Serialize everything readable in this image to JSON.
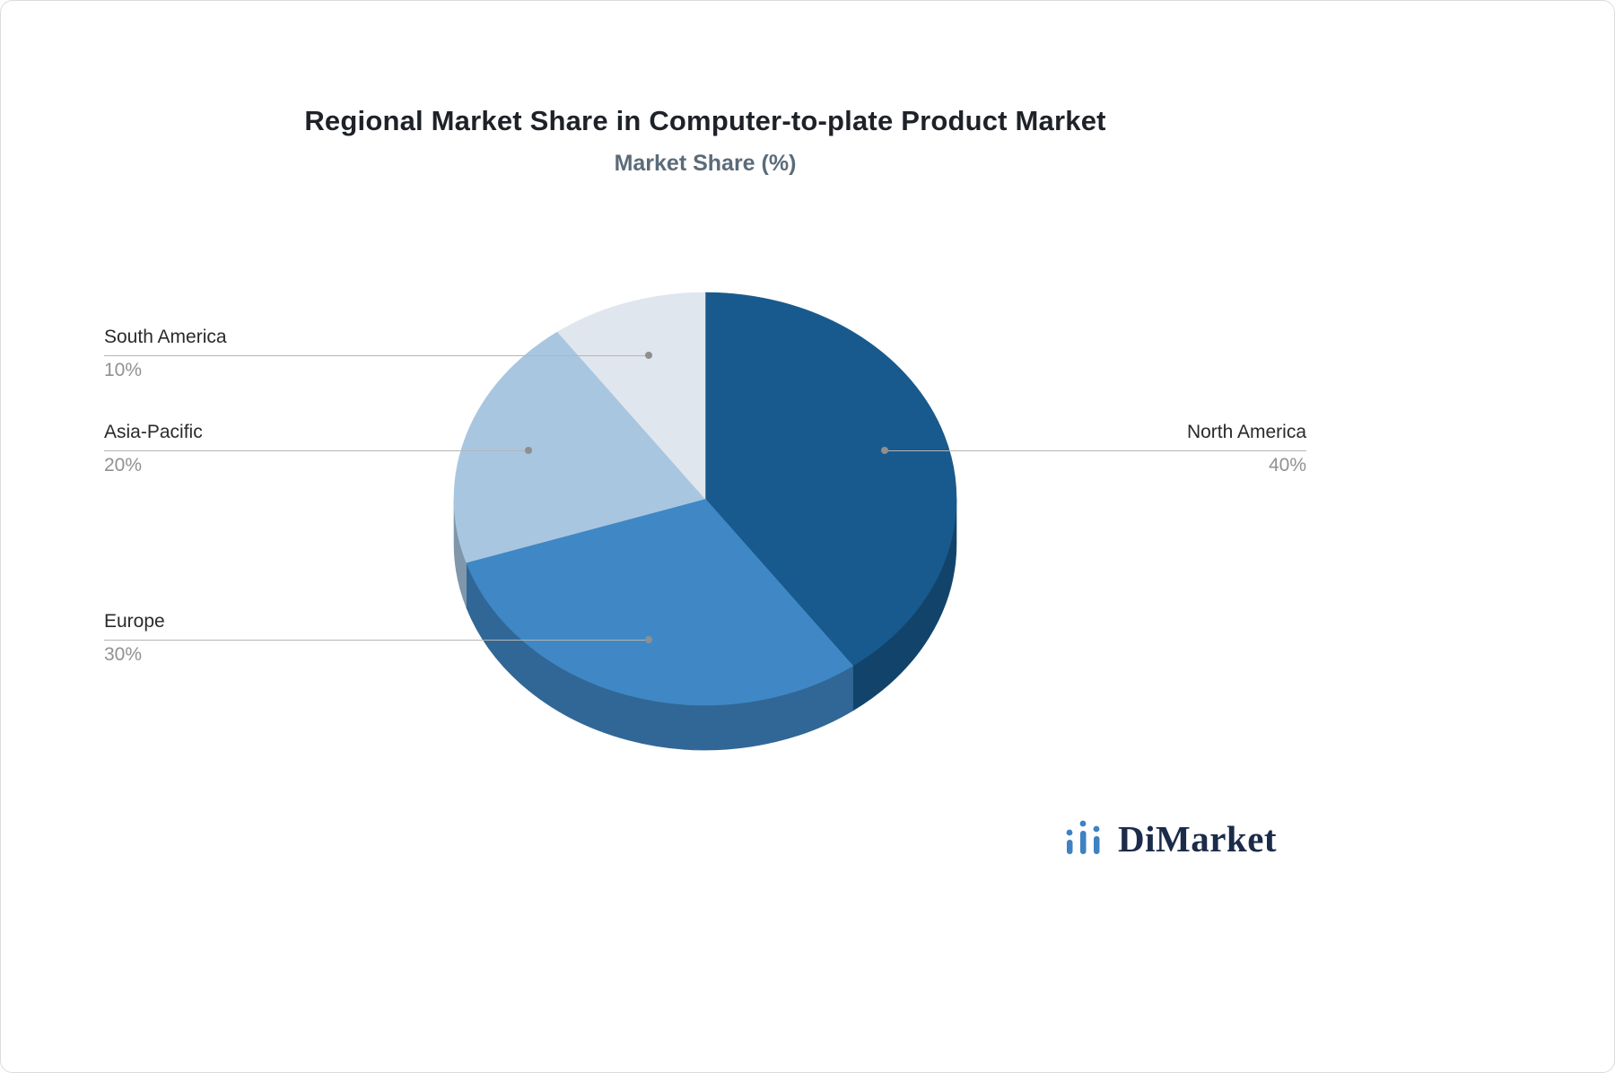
{
  "title": "Regional Market Share in Computer-to-plate Product Market",
  "subtitle": "Market Share (%)",
  "chart_data": {
    "type": "pie",
    "title": "Regional Market Share in Computer-to-plate Product Market",
    "subtitle": "Market Share (%)",
    "unit": "%",
    "labels": [
      "North America",
      "Europe",
      "Asia-Pacific",
      "South America"
    ],
    "values": [
      40,
      30,
      20,
      10
    ],
    "colors": [
      "#185a8d",
      "#3f88c5",
      "#a9c6e0",
      "#e0e6ee"
    ],
    "start_angle_deg": -90,
    "direction": "clockwise",
    "style": "3d",
    "legend_position": "callout-labels"
  },
  "callouts": {
    "north_america": {
      "label": "North America",
      "value": "40%"
    },
    "europe": {
      "label": "Europe",
      "value": "30%"
    },
    "asia_pacific": {
      "label": "Asia-Pacific",
      "value": "20%"
    },
    "south_america": {
      "label": "South America",
      "value": "10%"
    }
  },
  "logo": {
    "text": "DiMarket",
    "icon": "bar-chart-icon",
    "accent_color": "#3e82c4",
    "text_color": "#1b2b4a"
  }
}
